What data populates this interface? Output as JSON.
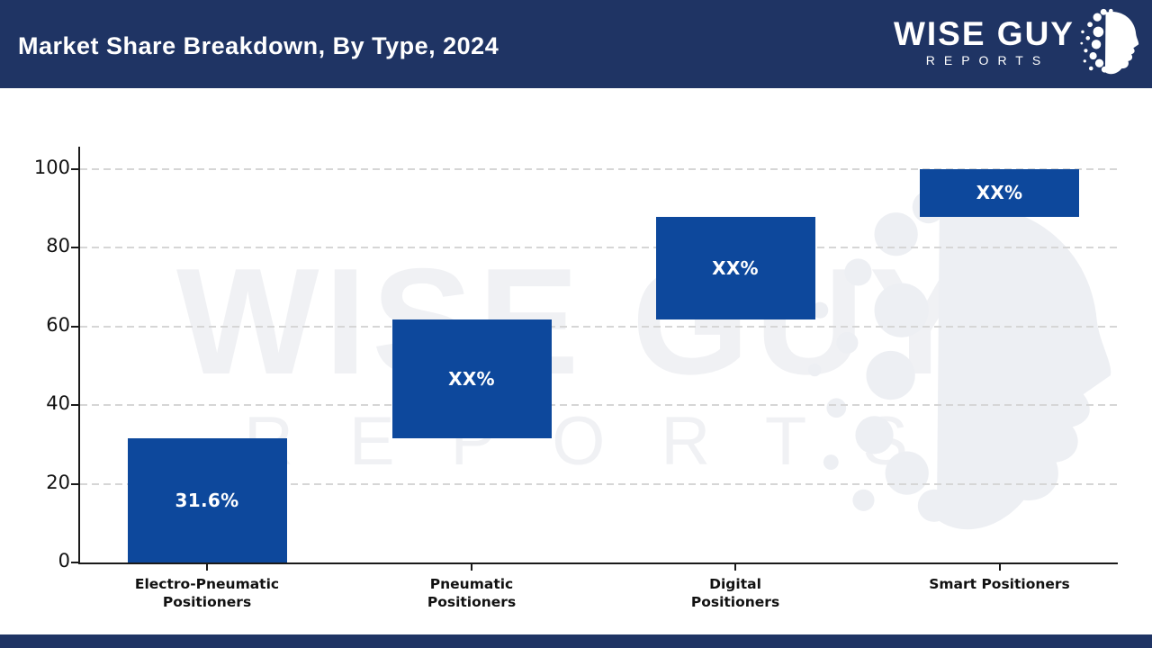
{
  "header": {
    "title": "Market Share Breakdown, By Type, 2024",
    "logo": {
      "line1": "WISE GUY",
      "line2": "REPORTS"
    }
  },
  "watermark": {
    "line1": "WISE GUY",
    "line2": "REPORTS"
  },
  "colors": {
    "header_bg": "#1f3464",
    "bar": "#0d489c",
    "bar_label_text": "#ffffff",
    "gridline": "#d6d6d6",
    "axis": "#1a1a1a",
    "watermark": "#f0f1f4"
  },
  "chart_data": {
    "type": "bar",
    "variant": "waterfall",
    "title": "Market Share Breakdown, By Type, 2024",
    "categories": [
      "Electro-Pneumatic\nPositioners",
      "Pneumatic\nPositioners",
      "Digital\nPositioners",
      "Smart Positioners"
    ],
    "bar_labels": [
      "31.6%",
      "XX%",
      "XX%",
      "XX%"
    ],
    "segments": [
      [
        0,
        31.6
      ],
      [
        31.6,
        61.8
      ],
      [
        61.8,
        87.8
      ],
      [
        87.8,
        100
      ]
    ],
    "estimated_segment_sizes": [
      31.6,
      30.2,
      26.0,
      12.2
    ],
    "yticks": [
      0,
      20,
      40,
      60,
      80,
      100
    ],
    "ylim": [
      0,
      105
    ],
    "xlabel": "",
    "ylabel": "",
    "grid": "horizontal-dashed",
    "legend": "none",
    "bar_color": "#0d489c"
  }
}
